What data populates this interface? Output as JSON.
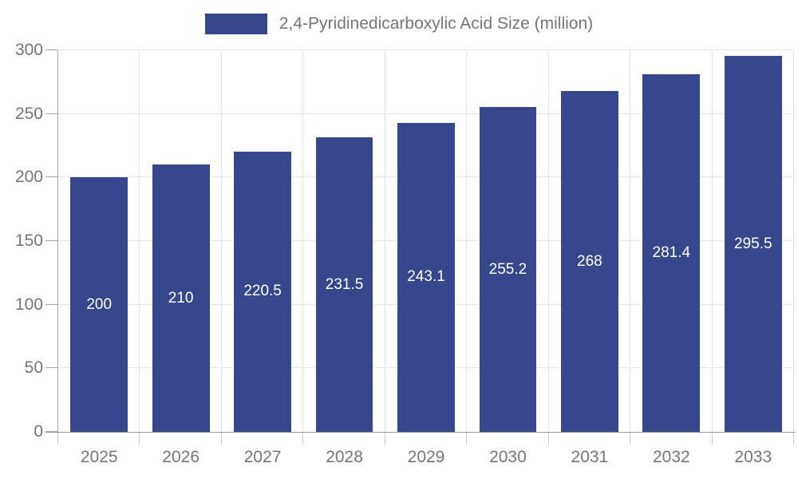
{
  "legend": {
    "label": "2,4-Pyridinedicarboxylic Acid Size (million)"
  },
  "chart_data": {
    "type": "bar",
    "title": "2,4-Pyridinedicarboxylic Acid Size (million)",
    "categories": [
      "2025",
      "2026",
      "2027",
      "2028",
      "2029",
      "2030",
      "2031",
      "2032",
      "2033"
    ],
    "values": [
      200,
      210,
      220.5,
      231.5,
      243.1,
      255.2,
      268,
      281.4,
      295.5
    ],
    "value_labels": [
      "200",
      "210",
      "220.5",
      "231.5",
      "243.1",
      "255.2",
      "268",
      "281.4",
      "295.5"
    ],
    "xlabel": "",
    "ylabel": "",
    "ylim": [
      0,
      300
    ],
    "yticks": [
      0,
      50,
      100,
      150,
      200,
      250,
      300
    ],
    "grid": "on",
    "legend_position": "top-center",
    "colors": {
      "bar": "#36488b",
      "value_label": "#ffffff",
      "tick_label": "#757575",
      "grid_line": "#e6e6e6",
      "axis_line": "#a6a6a6"
    }
  }
}
